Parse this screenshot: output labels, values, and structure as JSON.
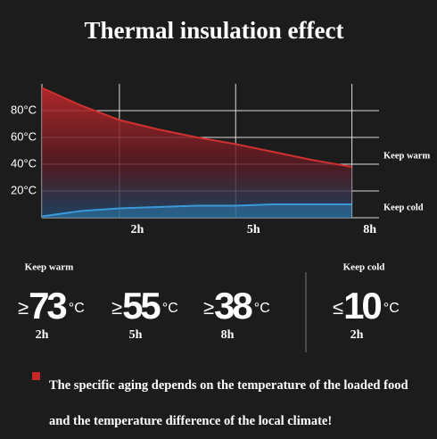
{
  "chart_data": {
    "type": "area",
    "title": "Thermal insulation effect",
    "x": [
      0,
      1,
      2,
      3,
      4,
      5,
      6,
      7,
      8
    ],
    "series": [
      {
        "name": "Keep warm",
        "color": "#d0302f",
        "values": [
          97,
          84,
          73,
          66,
          60,
          55,
          49,
          43,
          38
        ]
      },
      {
        "name": "Keep cold",
        "color": "#3a9ad9",
        "values": [
          1,
          5,
          7,
          8,
          9,
          9,
          10,
          10,
          10
        ]
      }
    ],
    "xlim": [
      0,
      8.7
    ],
    "xticks": [
      {
        "value": 2,
        "label": "2h"
      },
      {
        "value": 5,
        "label": "5h"
      },
      {
        "value": 8,
        "label": "8h"
      }
    ],
    "ylim": [
      0,
      100
    ],
    "yticks": [
      {
        "value": 20,
        "label": "20°C"
      },
      {
        "value": 40,
        "label": "40°C"
      },
      {
        "value": 60,
        "label": "60°C"
      },
      {
        "value": 80,
        "label": "80°C"
      }
    ],
    "grid": true
  },
  "stats": {
    "keep_warm": {
      "title": "Keep warm",
      "items": [
        {
          "symbol": "≥",
          "value": 73,
          "unit": "°C",
          "time": "2h"
        },
        {
          "symbol": "≥",
          "value": 55,
          "unit": "°C",
          "time": "5h"
        },
        {
          "symbol": "≥",
          "value": 38,
          "unit": "°C",
          "time": "8h"
        }
      ]
    },
    "keep_cold": {
      "title": "Keep cold",
      "items": [
        {
          "symbol": "≤",
          "value": 10,
          "unit": "°C",
          "time": "2h"
        }
      ]
    }
  },
  "note": "The specific aging depends on the temperature of the loaded food and the temperature difference of the local climate!"
}
